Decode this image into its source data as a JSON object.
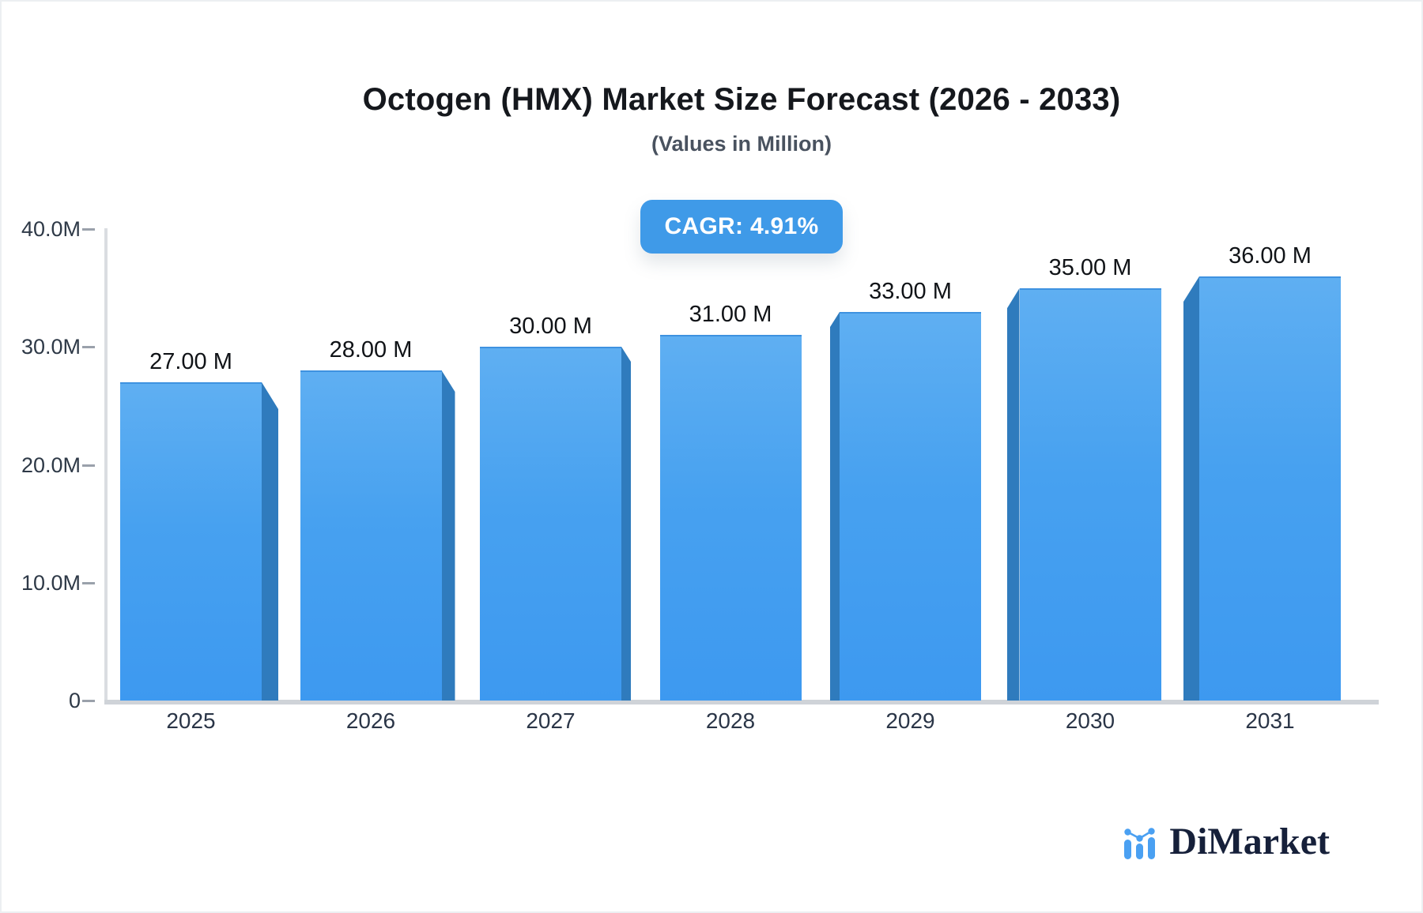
{
  "header": {
    "title": "Octogen (HMX) Market Size Forecast (2026 - 2033)",
    "subtitle": "(Values in Million)"
  },
  "badge": {
    "label": "CAGR: 4.91%"
  },
  "chart_data": {
    "type": "bar",
    "title": "Octogen (HMX) Market Size Forecast (2026 - 2033)",
    "subtitle": "(Values in Million)",
    "categories": [
      "2025",
      "2026",
      "2027",
      "2028",
      "2029",
      "2030",
      "2031"
    ],
    "values": [
      27,
      28,
      30,
      31,
      33,
      35,
      36
    ],
    "bar_labels": [
      "27.00 M",
      "28.00 M",
      "30.00 M",
      "31.00 M",
      "33.00 M",
      "35.00 M",
      "36.00 M"
    ],
    "unit": "Million",
    "xlabel": "",
    "ylabel": "",
    "ylim": [
      0,
      40
    ],
    "yticks": [
      0,
      10,
      20,
      30,
      40
    ],
    "ytick_labels": [
      "0",
      "10.0M",
      "20.0M",
      "30.0M",
      "40.0M"
    ],
    "grid": false,
    "legend": false,
    "style": "pseudo-3d-bars",
    "colors": {
      "bar_face": "#47A1F0",
      "bar_side": "#2F7BBD",
      "badge_bg": "#3F9AE8",
      "axis": "#DADDE1",
      "text": "#15181d"
    }
  },
  "branding": {
    "logo_text": "DiMarket",
    "logo_icon": "mini-bar-line-chart"
  }
}
